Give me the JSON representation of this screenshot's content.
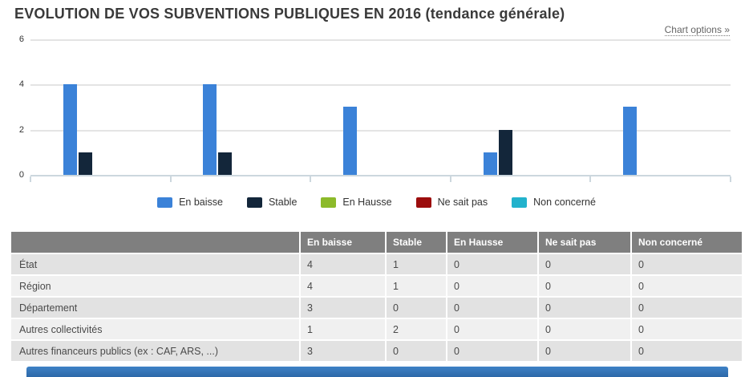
{
  "title": "EVOLUTION DE VOS SUBVENTIONS PUBLIQUES EN 2016 (tendance générale)",
  "chart_options_label": "Chart options »",
  "chart_data": {
    "type": "bar",
    "categories": [
      "État",
      "Région",
      "Département",
      "Autres collectivités",
      "Autres financeurs publics (ex : CAF, ARS, ...)"
    ],
    "series": [
      {
        "name": "En baisse",
        "color": "#3b82d8",
        "values": [
          4,
          4,
          3,
          1,
          3
        ]
      },
      {
        "name": "Stable",
        "color": "#13263a",
        "values": [
          1,
          1,
          0,
          2,
          0
        ]
      },
      {
        "name": "En Hausse",
        "color": "#8cba2a",
        "values": [
          0,
          0,
          0,
          0,
          0
        ]
      },
      {
        "name": "Ne sait pas",
        "color": "#9c0d0d",
        "values": [
          0,
          0,
          0,
          0,
          0
        ]
      },
      {
        "name": "Non concerné",
        "color": "#22b2cc",
        "values": [
          0,
          0,
          0,
          0,
          0
        ]
      }
    ],
    "ylim": [
      0,
      6
    ],
    "yticks": [
      6,
      4,
      2,
      0
    ],
    "grid": true,
    "legend_position": "bottom"
  },
  "table": {
    "columns": [
      "",
      "En baisse",
      "Stable",
      "En Hausse",
      "Ne sait pas",
      "Non concerné"
    ],
    "rows": [
      {
        "label": "État",
        "values": [
          4,
          1,
          0,
          0,
          0
        ]
      },
      {
        "label": "Région",
        "values": [
          4,
          1,
          0,
          0,
          0
        ]
      },
      {
        "label": "Département",
        "values": [
          3,
          0,
          0,
          0,
          0
        ]
      },
      {
        "label": "Autres collectivités",
        "values": [
          1,
          2,
          0,
          0,
          0
        ]
      },
      {
        "label": "Autres financeurs publics (ex : CAF, ARS, ...)",
        "values": [
          3,
          0,
          0,
          0,
          0
        ]
      }
    ]
  }
}
